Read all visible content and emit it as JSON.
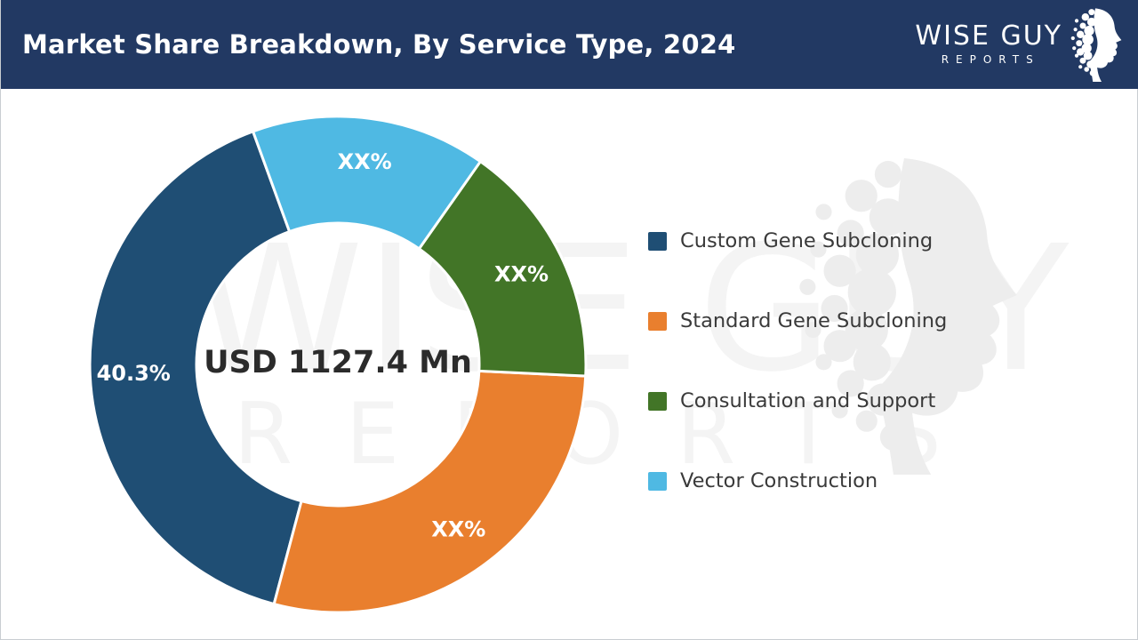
{
  "header": {
    "title": "Market Share Breakdown, By Service Type, 2024",
    "bg_color": "#223963",
    "logo": {
      "line1": "WISE GUY",
      "line2": "REPORTS"
    }
  },
  "chart_data": {
    "type": "pie",
    "subtype": "donut",
    "title": "Market Share Breakdown, By Service Type, 2024",
    "center_label": "USD 1127.4 Mn",
    "start_angle_deg": 110,
    "direction": "counterclockwise",
    "legend_position": "right",
    "series": [
      {
        "name": "Custom Gene Subcloning",
        "value": 40.3,
        "label": "40.3%",
        "color": "#1F4E74"
      },
      {
        "name": "Standard Gene Subcloning",
        "value": 28.4,
        "label": "XX%",
        "color": "#E97F2E"
      },
      {
        "name": "Consultation and Support",
        "value": 16.0,
        "label": "XX%",
        "color": "#427527"
      },
      {
        "name": "Vector Construction",
        "value": 15.3,
        "label": "XX%",
        "color": "#4FB9E3"
      }
    ]
  },
  "watermark": {
    "line1": "WISE GUY",
    "line2": "REPORTS"
  }
}
